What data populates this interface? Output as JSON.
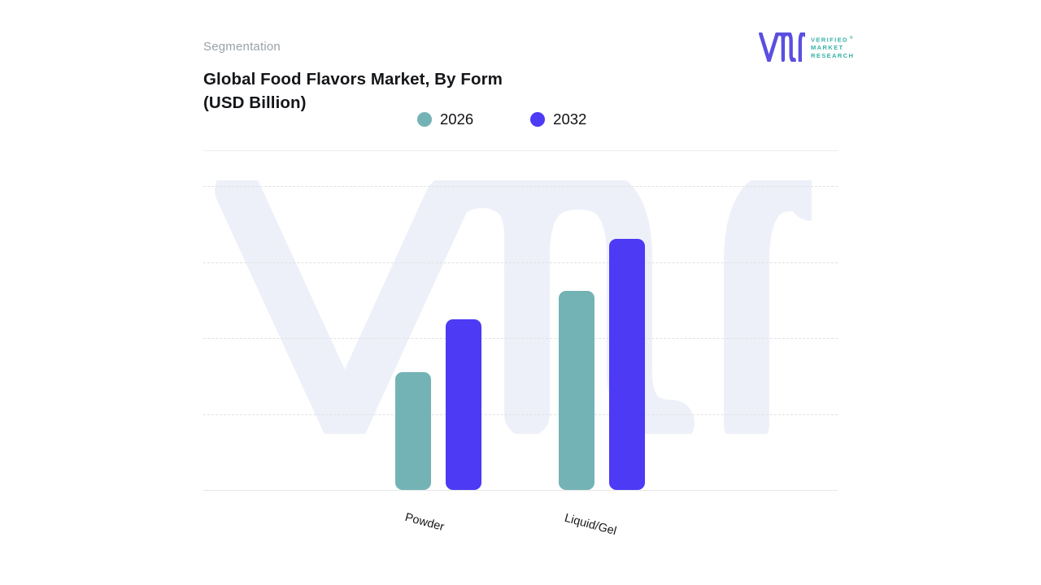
{
  "header": {
    "eyebrow": "Segmentation",
    "title_line1": "Global Food Flavors Market, By Form",
    "title_line2": "(USD Billion)"
  },
  "logo": {
    "brand_lines": [
      "VERIFIED",
      "MARKET",
      "RESEARCH"
    ],
    "registered_mark": "®",
    "mark_color": "#5a4fe0",
    "text_color": "#35b2a4"
  },
  "legend": [
    {
      "label": "2026",
      "color": "#74b3b5"
    },
    {
      "label": "2032",
      "color": "#4c3af5"
    }
  ],
  "chart_data": {
    "type": "bar",
    "title": "Global Food Flavors Market, By Form (USD Billion)",
    "categories": [
      "Powder",
      "Liquid/Gel"
    ],
    "series": [
      {
        "name": "2026",
        "color": "#74b3b5",
        "values": [
          1.55,
          2.62
        ]
      },
      {
        "name": "2032",
        "color": "#4c3af5",
        "values": [
          2.25,
          3.3
        ]
      }
    ],
    "xlabel": "",
    "ylabel": "",
    "ylim": [
      0,
      4
    ],
    "y_tick_labels_shown": false,
    "y_unit": "gridline intervals (y axis unlabeled in figure)",
    "grid": "horizontal dashed lines",
    "legend_position": "top-center",
    "bar_corner_radius": 9
  },
  "watermark": {
    "name": "vmr-monogram",
    "color": "#eef0f9"
  }
}
